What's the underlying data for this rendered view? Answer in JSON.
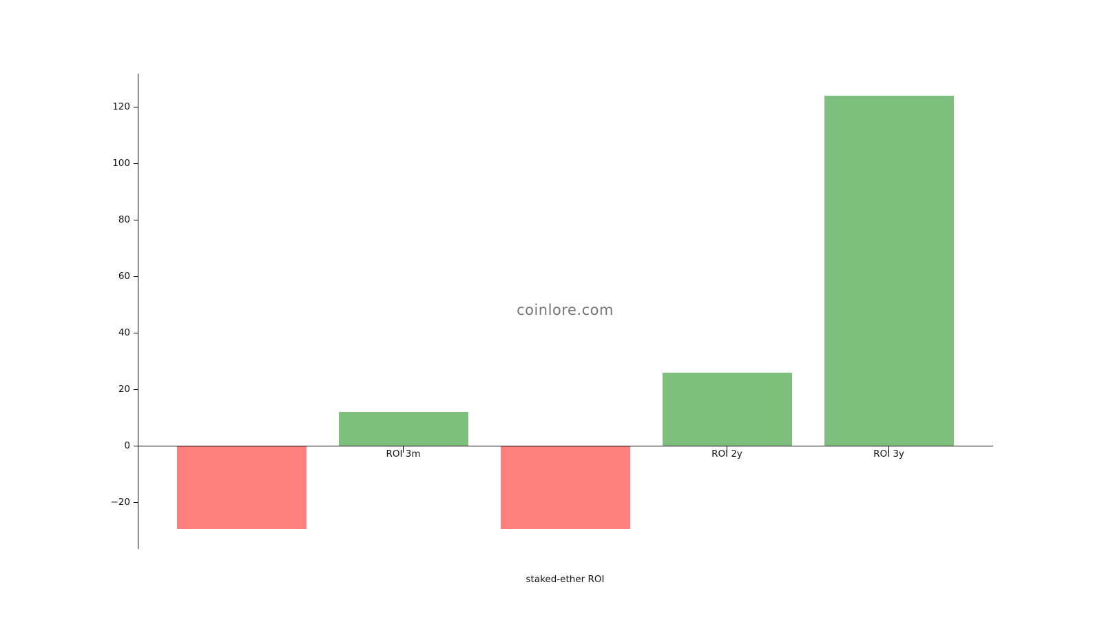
{
  "watermark": "coinlore.com",
  "chart_data": {
    "type": "bar",
    "title": "",
    "xlabel": "staked-ether ROI",
    "ylabel": "",
    "categories": [
      "",
      "ROI 3m",
      "",
      "ROI 2y",
      "ROI 3y"
    ],
    "values": [
      -29.5,
      12,
      -29.5,
      26,
      124
    ],
    "bar_colors": [
      "#ff7f7f",
      "#7ebf7e",
      "#ff7f7f",
      "#7ebf7e",
      "#7ebf7e"
    ],
    "yticks": [
      120,
      100,
      80,
      60,
      40,
      20,
      0,
      -20
    ],
    "ytick_labels": [
      "120",
      "100",
      "80",
      "60",
      "40",
      "20",
      "0",
      "−20"
    ],
    "ylim": [
      -36.6,
      131.8
    ],
    "grid": false,
    "legend_position": "none",
    "colors": {
      "positive": "#7ebf7e",
      "negative": "#ff7f7f",
      "axis": "#000000",
      "tick_text": "#111111",
      "watermark": "#757575"
    }
  }
}
